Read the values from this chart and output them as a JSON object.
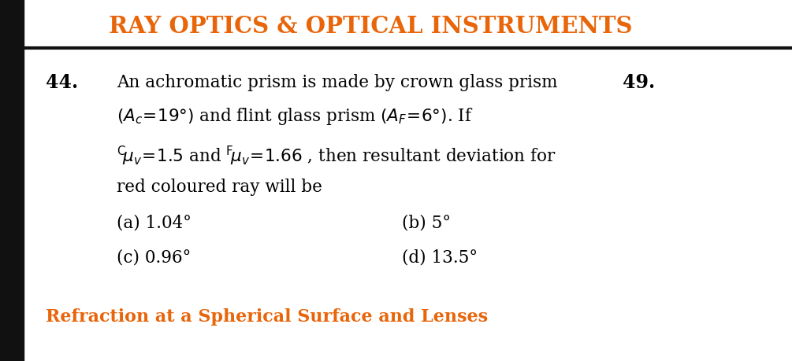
{
  "title": "RAY OPTICS & OPTICAL INSTRUMENTS",
  "title_color": "#E8650A",
  "background_color": "#FFFFFF",
  "left_bar_color": "#111111",
  "q44": "44.",
  "q49": "49.",
  "line1": "An achromatic prism is made by crown glass prism",
  "line4": "red coloured ray will be",
  "opt_a": "(a) 1.04°",
  "opt_b": "(b) 5°",
  "opt_c": "(c) 0.96°",
  "opt_d": "(d) 13.5°",
  "footer": "Refraction at a Spherical Surface and Lenses",
  "footer_color": "#E8650A",
  "text_color": "#000000",
  "separator_color": "#111111",
  "title_fontsize": 21,
  "body_fontsize": 15.5,
  "footer_fontsize": 16,
  "q_num_fontsize": 17
}
